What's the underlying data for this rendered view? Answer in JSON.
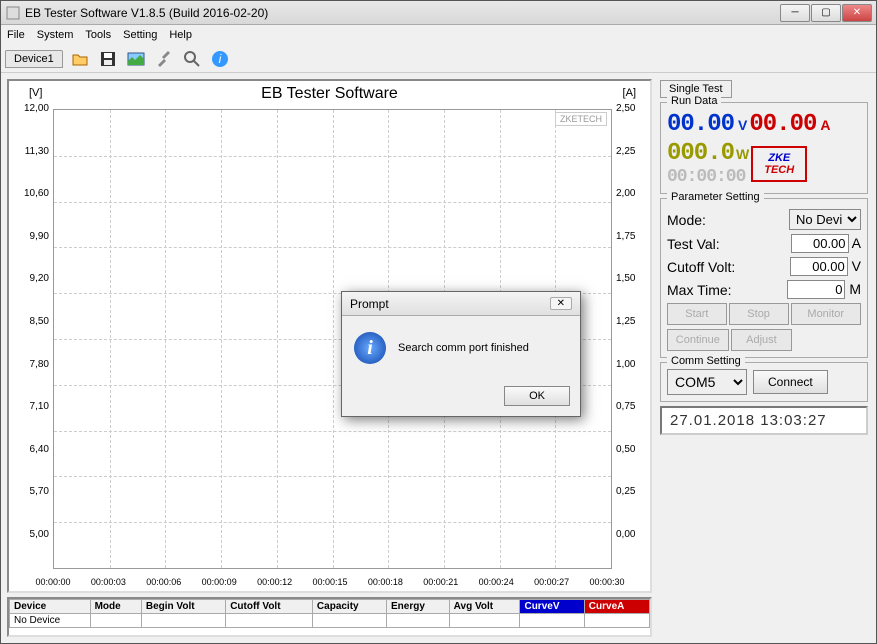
{
  "window": {
    "title": "EB Tester Software V1.8.5 (Build 2016-02-20)"
  },
  "menu": {
    "file": "File",
    "system": "System",
    "tools": "Tools",
    "setting": "Setting",
    "help": "Help"
  },
  "devicetab": "Device1",
  "chart": {
    "title": "EB Tester Software",
    "left_unit": "[V]",
    "right_unit": "[A]",
    "watermark": "ZKETECH",
    "y_left": [
      "12,00",
      "11,30",
      "10,60",
      "9,90",
      "9,20",
      "8,50",
      "7,80",
      "7,10",
      "6,40",
      "5,70",
      "5,00"
    ],
    "y_right": [
      "2,50",
      "2,25",
      "2,00",
      "1,75",
      "1,50",
      "1,25",
      "1,00",
      "0,75",
      "0,50",
      "0,25",
      "0,00"
    ],
    "x": [
      "00:00:00",
      "00:00:03",
      "00:00:06",
      "00:00:09",
      "00:00:12",
      "00:00:15",
      "00:00:18",
      "00:00:21",
      "00:00:24",
      "00:00:27",
      "00:00:30"
    ]
  },
  "table": {
    "cols": [
      "Device",
      "Mode",
      "Begin Volt",
      "Cutoff Volt",
      "Capacity",
      "Energy",
      "Avg Volt",
      "CurveV",
      "CurveA"
    ],
    "row": [
      "No Device",
      "",
      "",
      "",
      "",
      "",
      "",
      "",
      ""
    ]
  },
  "right": {
    "tab": "Single Test",
    "rundata_legend": "Run Data",
    "volt": "00.00",
    "volt_u": "V",
    "amp": "00.00",
    "amp_u": "A",
    "watt": "000.0",
    "watt_u": "W",
    "time": "00:00:00",
    "param_legend": "Parameter Setting",
    "mode_label": "Mode:",
    "mode_val": "No Devic",
    "testval_label": "Test Val:",
    "testval": "00.00",
    "testval_u": "A",
    "cutoff_label": "Cutoff Volt:",
    "cutoff": "00.00",
    "cutoff_u": "V",
    "maxtime_label": "Max Time:",
    "maxtime": "0",
    "maxtime_u": "M",
    "btn_start": "Start",
    "btn_stop": "Stop",
    "btn_monitor": "Monitor",
    "btn_continue": "Continue",
    "btn_adjust": "Adjust",
    "comm_legend": "Comm Setting",
    "port": "COM5",
    "connect": "Connect",
    "datetime": "27.01.2018 13:03:27"
  },
  "dialog": {
    "title": "Prompt",
    "msg": "Search comm port finished",
    "ok": "OK"
  },
  "colors": {
    "curveV": "#0000cc",
    "curveA": "#cc0000"
  }
}
